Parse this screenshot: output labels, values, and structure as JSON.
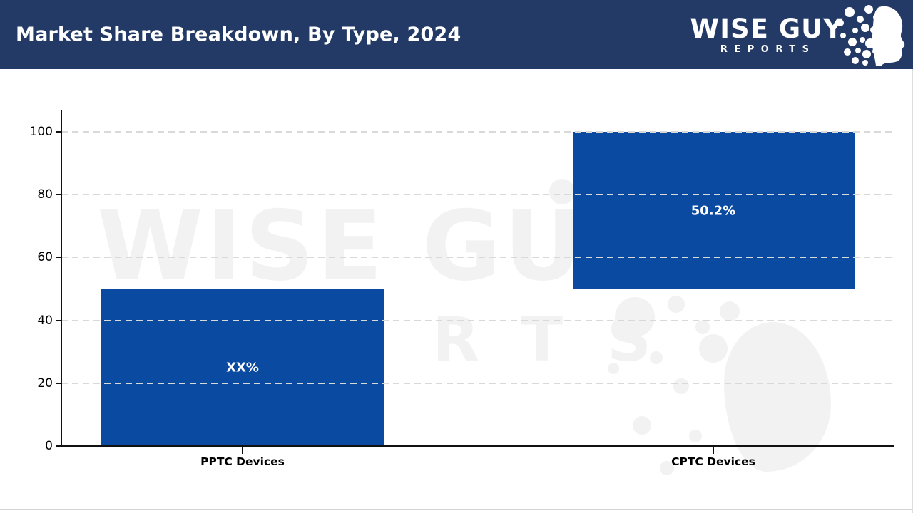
{
  "header": {
    "title": "Market Share Breakdown, By Type, 2024",
    "logo": {
      "line1": "WISE GUY",
      "line2": "REPORTS"
    }
  },
  "watermark": {
    "line1": "WISE GUY",
    "line2": "RTS"
  },
  "chart_data": {
    "type": "bar",
    "subtype": "waterfall-stacked",
    "title": "Market Share Breakdown, By Type, 2024",
    "categories": [
      "PPTC Devices",
      "CPTC Devices"
    ],
    "values": [
      49.8,
      50.2
    ],
    "bars": [
      {
        "category": "PPTC Devices",
        "start": 0,
        "end": 49.8,
        "label": "XX%"
      },
      {
        "category": "CPTC Devices",
        "start": 49.8,
        "end": 100,
        "label": "50.2%"
      }
    ],
    "xlabel": "",
    "ylabel": "",
    "ylim": [
      0,
      100
    ],
    "yticks": [
      0,
      20,
      40,
      60,
      80,
      100
    ],
    "grid": "horizontal-dashed",
    "legend_position": "none"
  },
  "colors": {
    "header_navy": "#233a66",
    "bar_blue": "#0a4aa1",
    "bar_label_white": "#ffffff",
    "grid_gray": "#d9d9d9",
    "axis_black": "#111111",
    "watermark_gray": "#f2f2f2",
    "border_gray": "#d4d4d4"
  }
}
